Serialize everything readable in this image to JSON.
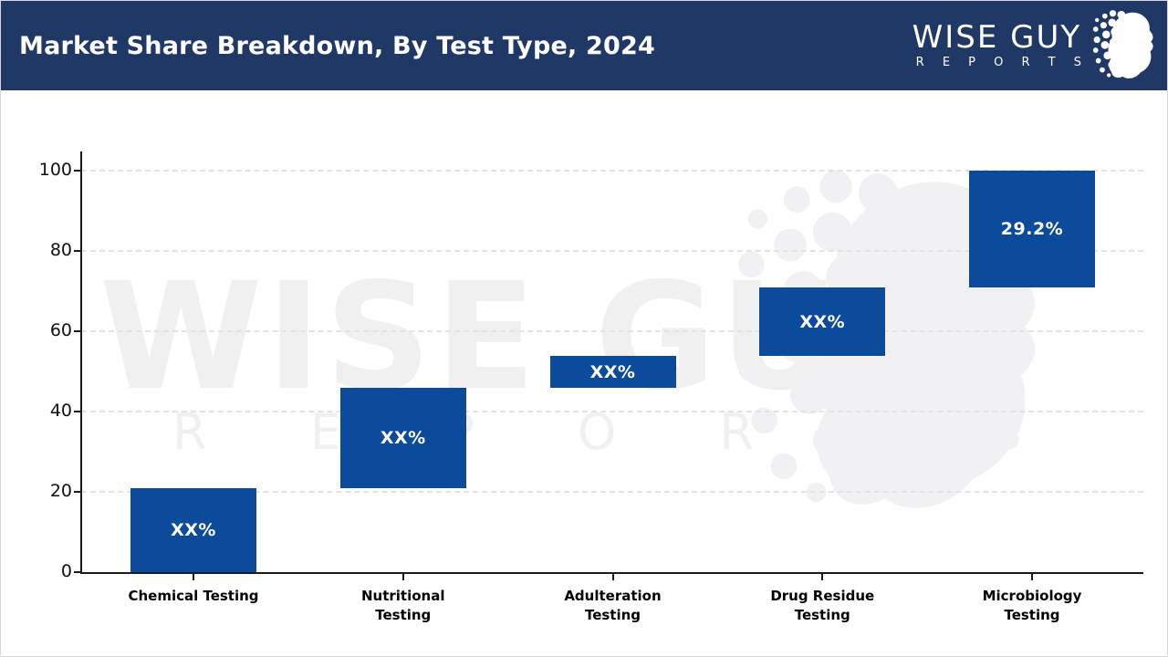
{
  "header": {
    "title": "Market Share Breakdown, By Test Type, 2024",
    "logo": {
      "line1": "WISE GUY",
      "line2": "R E P O R T S"
    }
  },
  "watermark": {
    "line1": "WISE GUY",
    "line2": "R E P O R T S"
  },
  "colors": {
    "header_bg": "#1f3866",
    "bar": "#0c4a9c",
    "grid": "#e3e3e3",
    "axis": "#1a1a1a",
    "bar_label": "#ffffff",
    "watermark": "#f0f0f1"
  },
  "chart_data": {
    "type": "bar",
    "subtype": "waterfall",
    "title": "Market Share Breakdown, By Test Type, 2024",
    "xlabel": "",
    "ylabel": "",
    "ylim": [
      0,
      105
    ],
    "yticks": [
      0,
      20,
      40,
      60,
      80,
      100
    ],
    "grid": "horizontal-dashed",
    "legend": "none",
    "categories": [
      "Chemical Testing",
      "Nutritional Testing",
      "Adulteration Testing",
      "Drug Residue Testing",
      "Microbiology Testing"
    ],
    "bars": [
      {
        "category": "Chemical Testing",
        "label_lines": [
          "Chemical Testing"
        ],
        "start": 0,
        "end": 20.8,
        "value": 20.8,
        "data_label": "XX%"
      },
      {
        "category": "Nutritional Testing",
        "label_lines": [
          "Nutritional",
          "Testing"
        ],
        "start": 20.8,
        "end": 45.8,
        "value": 25.0,
        "data_label": "XX%"
      },
      {
        "category": "Adulteration Testing",
        "label_lines": [
          "Adulteration",
          "Testing"
        ],
        "start": 45.8,
        "end": 53.9,
        "value": 8.1,
        "data_label": "XX%"
      },
      {
        "category": "Drug Residue Testing",
        "label_lines": [
          "Drug Residue",
          "Testing"
        ],
        "start": 53.9,
        "end": 70.8,
        "value": 16.9,
        "data_label": "XX%"
      },
      {
        "category": "Microbiology Testing",
        "label_lines": [
          "Microbiology",
          "Testing"
        ],
        "start": 70.8,
        "end": 100.0,
        "value": 29.2,
        "data_label": "29.2%"
      }
    ]
  }
}
